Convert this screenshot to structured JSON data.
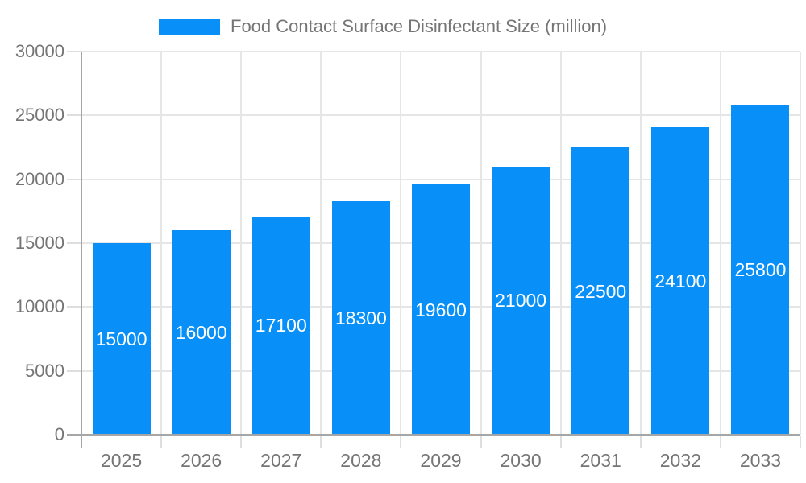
{
  "chart_data": {
    "type": "bar",
    "title": "Food Contact Surface Disinfectant Size (million)",
    "categories": [
      "2025",
      "2026",
      "2027",
      "2028",
      "2029",
      "2030",
      "2031",
      "2032",
      "2033"
    ],
    "values": [
      15000,
      16000,
      17100,
      18300,
      19600,
      21000,
      22500,
      24100,
      25800
    ],
    "xlabel": "",
    "ylabel": "",
    "ylim": [
      0,
      30000
    ],
    "yticks": [
      0,
      5000,
      10000,
      15000,
      20000,
      25000,
      30000
    ],
    "grid": true,
    "legend_position": "top",
    "bar_labels_inside": true,
    "colors": {
      "bar": "#0890f8",
      "bar_label": "#ffffff",
      "axis_text": "#757575",
      "gridline": "#e6e6e6",
      "tick": "#dedede",
      "axis_line": "#a6a6a6",
      "background": "#ffffff"
    }
  }
}
